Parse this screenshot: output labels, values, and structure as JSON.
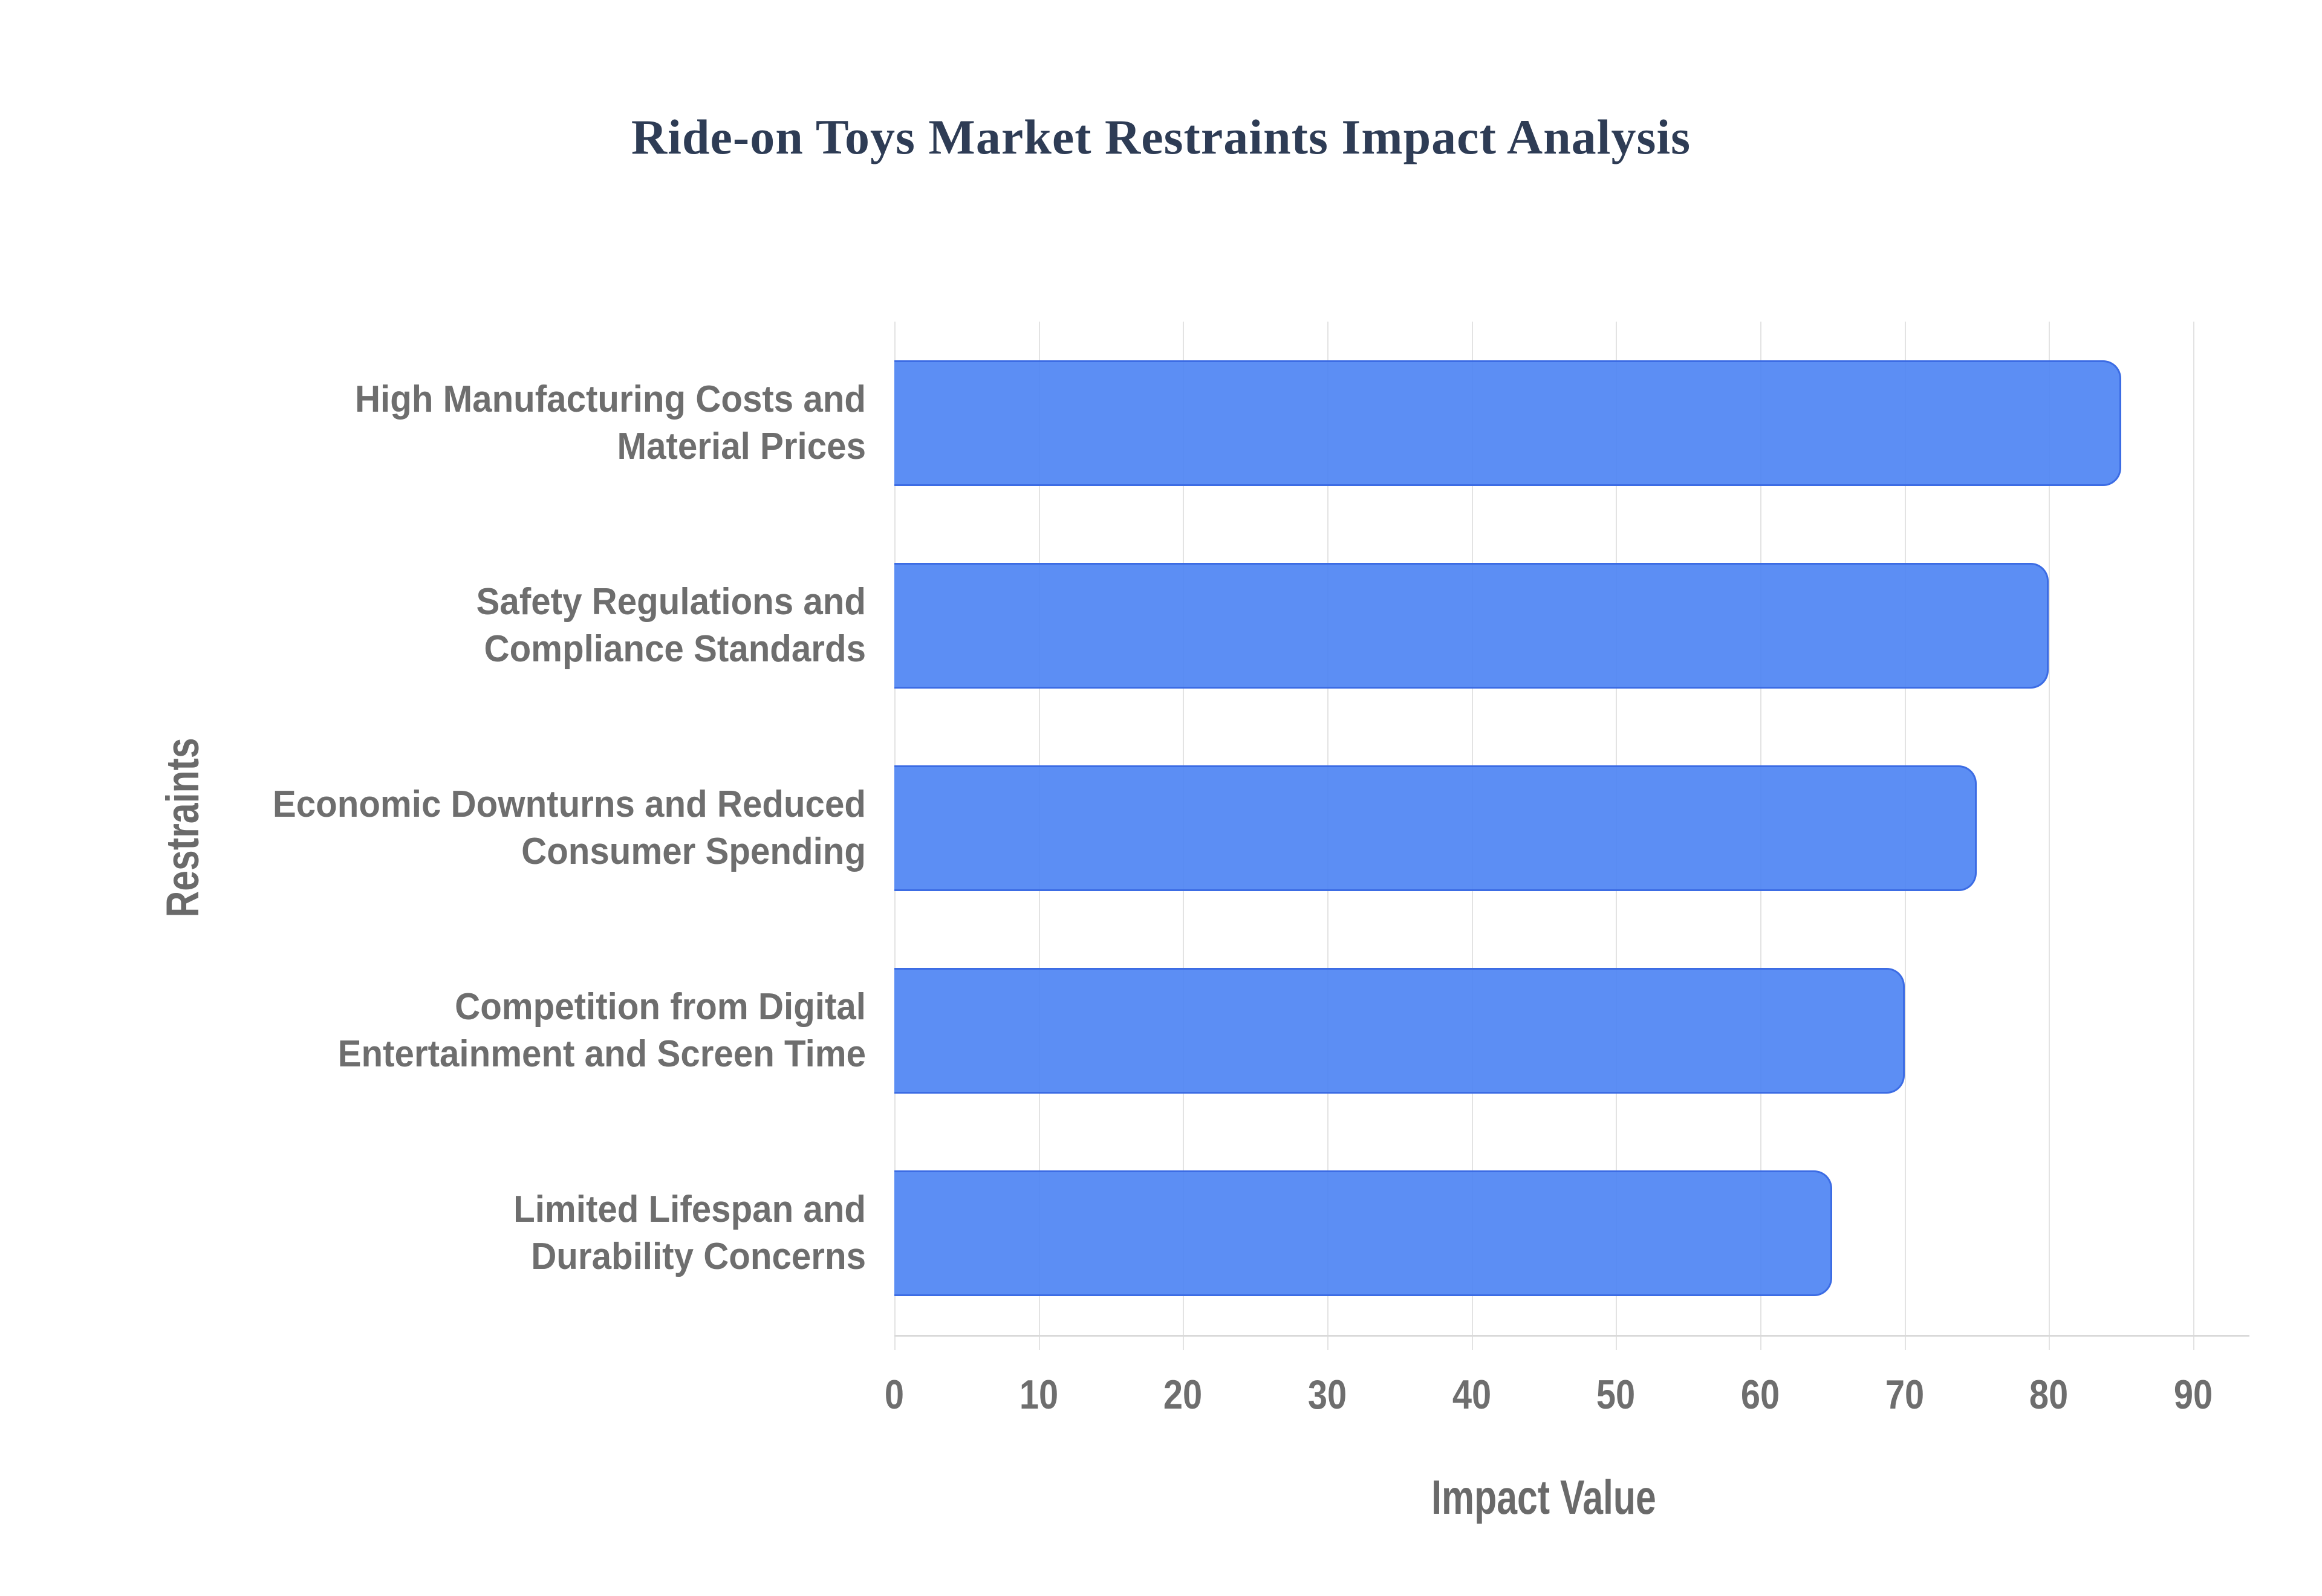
{
  "page": {
    "background": "#ffffff"
  },
  "chart_data": {
    "type": "bar",
    "orientation": "horizontal",
    "title": "Ride-on Toys Market Restraints Impact Analysis",
    "xlabel": "Impact Value",
    "ylabel": "Restraints",
    "categories": [
      "High Manufacturing Costs and Material Prices",
      "Safety Regulations and Compliance Standards",
      "Economic Downturns and Reduced Consumer Spending",
      "Competition from Digital Entertainment and Screen Time",
      "Limited Lifespan and Durability Concerns"
    ],
    "category_lines": [
      [
        "High Manufacturing Costs and",
        "Material Prices"
      ],
      [
        "Safety Regulations and",
        "Compliance Standards"
      ],
      [
        "Economic Downturns and Reduced",
        "Consumer Spending"
      ],
      [
        "Competition from Digital",
        "Entertainment and Screen Time"
      ],
      [
        "Limited Lifespan and",
        "Durability Concerns"
      ]
    ],
    "values": [
      85,
      80,
      75,
      70,
      65
    ],
    "x_ticks": [
      0,
      10,
      20,
      30,
      40,
      50,
      60,
      70,
      80,
      90
    ],
    "xlim": [
      0,
      90
    ],
    "grid": "vertical-gridlines-on",
    "legend": "none",
    "bar_value_labels": "none",
    "colors": {
      "bar_fill": "#4a82f3",
      "bar_fill_opacity": 0.9,
      "bar_border": "#3c6ce4",
      "grid_line": "#e3e3e3",
      "axis_line": "#d9d9d9",
      "label_gray": "#6e6e6e",
      "axis_title_gray": "#6a6a6a",
      "title_color": "#2e3c55",
      "background": "#ffffff"
    }
  }
}
